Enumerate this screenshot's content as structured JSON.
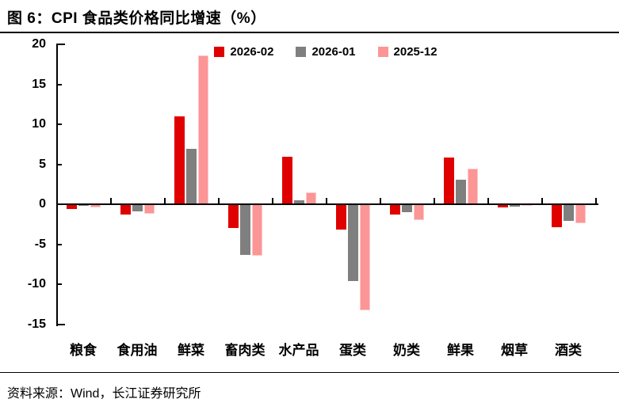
{
  "title": "图 6：CPI 食品类价格同比增速（%）",
  "source_note": "资料来源：Wind，长江证券研究所",
  "colors": {
    "red": "#e00000",
    "gray": "#7f7f7f",
    "pink": "#fc9595",
    "pink_edge": "#fec9c9",
    "axis": "#000000"
  },
  "chart_data": {
    "type": "bar",
    "title": "图 6：CPI 食品类价格同比增速（%）",
    "categories": [
      "粮食",
      "食用油",
      "鲜菜",
      "畜肉类",
      "水产品",
      "蛋类",
      "奶类",
      "鲜果",
      "烟草",
      "酒类"
    ],
    "series": [
      {
        "name": "2026-02",
        "color_key": "red",
        "values": [
          -0.6,
          -1.3,
          11.0,
          -2.9,
          6.0,
          -3.1,
          -1.3,
          5.9,
          -0.4,
          -2.8
        ]
      },
      {
        "name": "2026-01",
        "color_key": "gray",
        "values": [
          -0.2,
          -0.9,
          6.9,
          -6.3,
          0.5,
          -9.6,
          -1.0,
          3.1,
          -0.3,
          -2.0
        ]
      },
      {
        "name": "2025-12",
        "color_key": "pink",
        "values": [
          -0.4,
          -1.2,
          18.6,
          -6.4,
          1.5,
          -13.2,
          -1.9,
          4.5,
          -0.2,
          -2.3
        ]
      }
    ],
    "ylim": [
      -15,
      20
    ],
    "yticks": [
      20,
      15,
      10,
      5,
      0,
      -5,
      -10,
      -15
    ],
    "xlabel": "",
    "ylabel": "",
    "grid": false,
    "legend_position": "top-center"
  }
}
